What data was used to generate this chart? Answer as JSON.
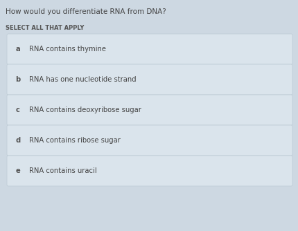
{
  "title": "How would you differentiate RNA from DNA?",
  "subtitle": "SELECT ALL THAT APPLY",
  "options": [
    {
      "letter": "a",
      "text": "RNA contains thymine"
    },
    {
      "letter": "b",
      "text": "RNA has one nucleotide strand"
    },
    {
      "letter": "c",
      "text": "RNA contains deoxyribose sugar"
    },
    {
      "letter": "d",
      "text": "RNA contains ribose sugar"
    },
    {
      "letter": "e",
      "text": "RNA contains uracil"
    }
  ],
  "bg_color": "#cdd8e2",
  "box_color": "#dae4ec",
  "box_edge_color": "#bccad4",
  "title_color": "#444444",
  "subtitle_color": "#555555",
  "letter_color": "#555555",
  "text_color": "#444444",
  "title_fontsize": 7.5,
  "subtitle_fontsize": 6.0,
  "option_fontsize": 7.2,
  "letter_fontsize": 7.2
}
